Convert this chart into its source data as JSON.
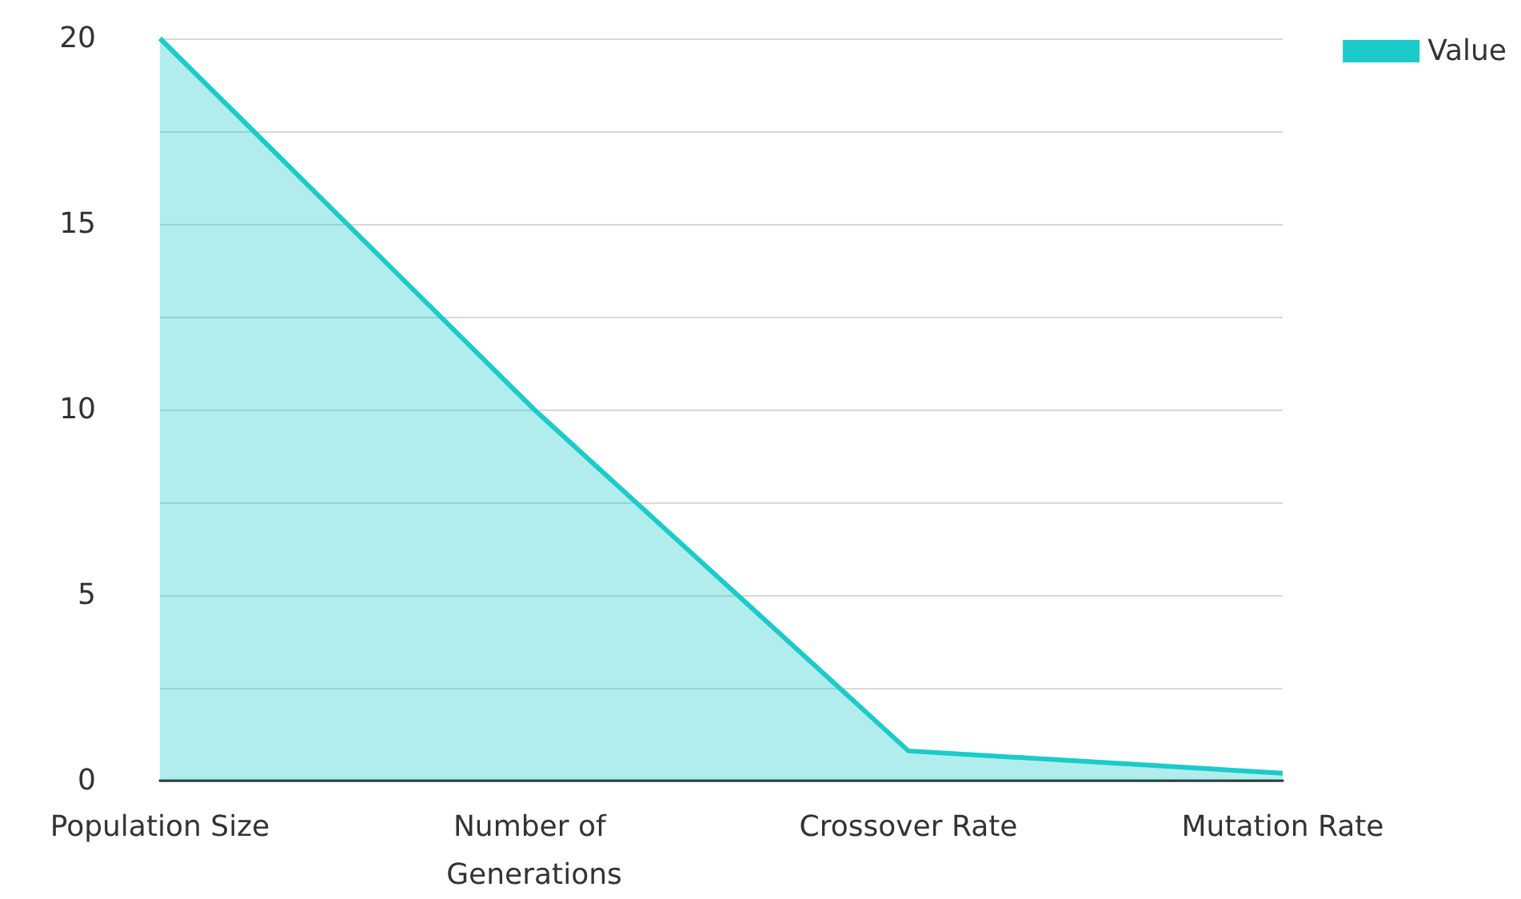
{
  "chart_data": {
    "type": "area",
    "categories": [
      "Population Size",
      "Number of Generations",
      "Crossover Rate",
      "Mutation Rate"
    ],
    "series": [
      {
        "name": "Value",
        "color": "#1ccbc9",
        "values": [
          20,
          10,
          0.8,
          0.2
        ]
      }
    ],
    "ylim": [
      0,
      20
    ],
    "yticks": [
      0,
      {
        "value": 2.5,
        "label": null
      },
      5,
      {
        "value": 7.5,
        "label": null
      },
      10,
      {
        "value": 12.5,
        "label": null
      },
      15,
      {
        "value": 17.5,
        "label": null
      },
      20
    ],
    "grid": "y",
    "legend": "top right"
  }
}
